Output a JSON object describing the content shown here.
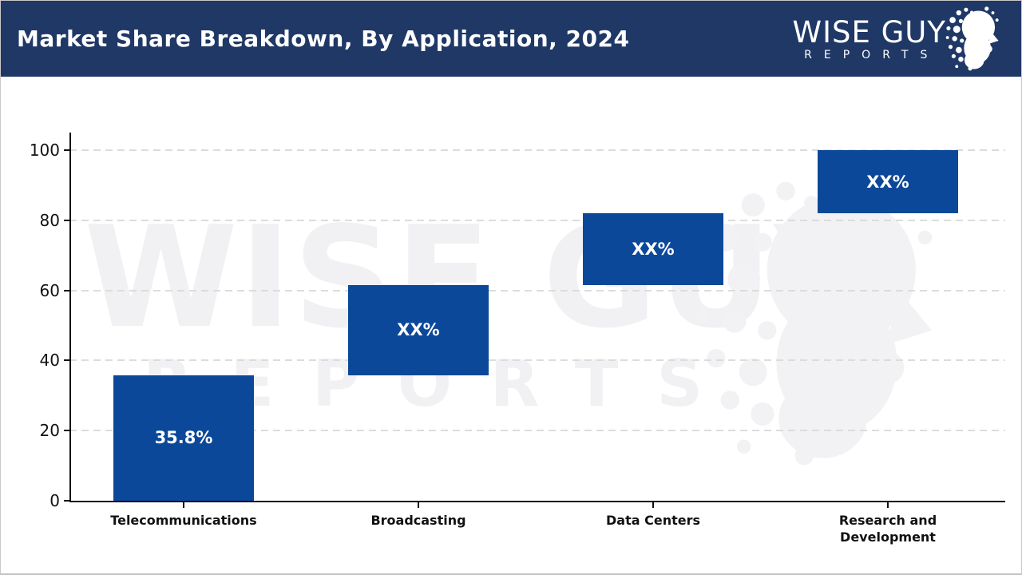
{
  "header": {
    "title": "Market Share Breakdown, By Application, 2024",
    "logo": {
      "line1": "WISE GUY",
      "line2": "REPORTS",
      "face_icon": "face-profile-dots-icon"
    }
  },
  "watermark": {
    "line1": "WISE GUY",
    "line2": "REPORTS",
    "face_icon": "face-profile-dots-icon"
  },
  "colors": {
    "header_bg": "#1f3866",
    "bar": "#0b4899",
    "bar_label": "#ffffff",
    "axis": "#111111",
    "grid": "#dcdcdc",
    "watermark": "#f1f1f4",
    "frame_border": "#c9c9c9"
  },
  "chart_data": {
    "type": "bar",
    "subtype": "waterfall",
    "title": "Market Share Breakdown, By Application, 2024",
    "categories": [
      "Telecommunications",
      "Broadcasting",
      "Data Centers",
      "Research and Development"
    ],
    "segments": [
      {
        "category": "Telecommunications",
        "label": "35.8%",
        "start": 0,
        "end": 35.8
      },
      {
        "category": "Broadcasting",
        "label": "XX%",
        "start": 35.8,
        "end": 61.5
      },
      {
        "category": "Data Centers",
        "label": "XX%",
        "start": 61.5,
        "end": 82
      },
      {
        "category": "Research and Development",
        "label": "XX%",
        "start": 82,
        "end": 100
      }
    ],
    "xlabel": "",
    "ylabel": "",
    "yticks": [
      0,
      20,
      40,
      60,
      80,
      100
    ],
    "ylim": [
      0,
      100
    ],
    "grid": "dashed-horizontal",
    "legend": "none"
  }
}
